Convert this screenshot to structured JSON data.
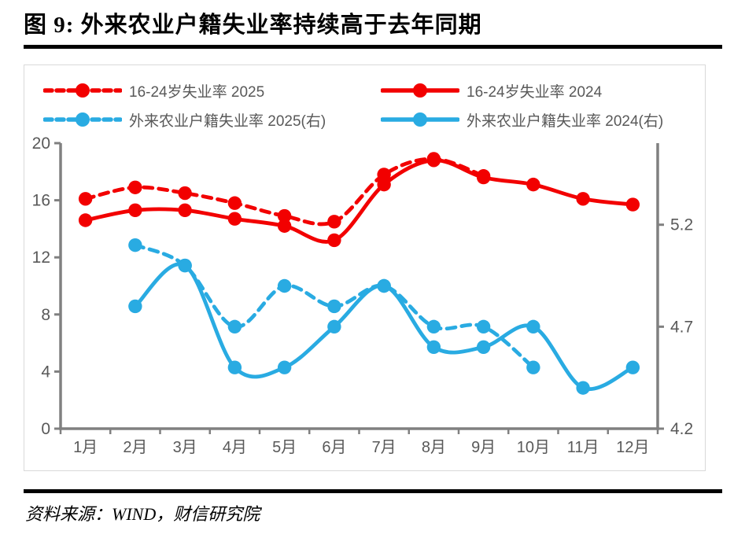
{
  "header": {
    "title": "图 9:  外来农业户籍失业率持续高于去年同期"
  },
  "footer": {
    "source": "资料来源：WIND，财信研究院"
  },
  "colors": {
    "red": "#F20000",
    "blue": "#29ABE2",
    "axis_line": "#808080",
    "axis_label": "#595959",
    "card_border": "#D9D9D9",
    "rule": "#000000"
  },
  "legend": [
    {
      "label": "16-24岁失业率 2025",
      "style": "dashed",
      "color": "#F20000"
    },
    {
      "label": "16-24岁失业率 2024",
      "style": "solid",
      "color": "#F20000"
    },
    {
      "label": "外来农业户籍失业率 2025(右)",
      "style": "dashed",
      "color": "#29ABE2"
    },
    {
      "label": "外来农业户籍失业率 2024(右)",
      "style": "solid",
      "color": "#29ABE2"
    }
  ],
  "chart_data": {
    "type": "line",
    "title": "外来农业户籍失业率持续高于去年同期",
    "categories": [
      "1月",
      "2月",
      "3月",
      "4月",
      "5月",
      "6月",
      "7月",
      "8月",
      "9月",
      "10月",
      "11月",
      "12月"
    ],
    "left_axis": {
      "min": 0,
      "max": 20,
      "ticks": [
        0,
        4,
        8,
        12,
        16,
        20
      ]
    },
    "right_axis": {
      "min": 4.2,
      "max": 5.6,
      "ticks": [
        4.2,
        4.7,
        5.2
      ]
    },
    "grid": false,
    "legend_position": "top",
    "smooth_lines": true,
    "series": [
      {
        "name": "16-24岁失业率 2025",
        "axis": "left",
        "line": "dashed",
        "color": "#F20000",
        "start_month": 1,
        "values": [
          16.1,
          16.9,
          16.5,
          15.8,
          14.9,
          14.5,
          17.8,
          18.9,
          17.7
        ]
      },
      {
        "name": "16-24岁失业率 2024",
        "axis": "left",
        "line": "solid",
        "color": "#F20000",
        "start_month": 1,
        "values": [
          14.6,
          15.3,
          15.3,
          14.7,
          14.2,
          13.2,
          17.1,
          18.8,
          17.6,
          17.1,
          16.1,
          15.7
        ]
      },
      {
        "name": "外来农业户籍失业率 2025(右)",
        "axis": "right",
        "line": "dashed",
        "color": "#29ABE2",
        "start_month": 2,
        "values": [
          5.1,
          5.0,
          4.7,
          4.9,
          4.8,
          4.9,
          4.7,
          4.7,
          4.5
        ]
      },
      {
        "name": "外来农业户籍失业率 2024(右)",
        "axis": "right",
        "line": "solid",
        "color": "#29ABE2",
        "start_month": 2,
        "values": [
          4.8,
          5.0,
          4.5,
          4.5,
          4.7,
          4.9,
          4.6,
          4.6,
          4.7,
          4.4,
          4.5
        ]
      }
    ]
  }
}
